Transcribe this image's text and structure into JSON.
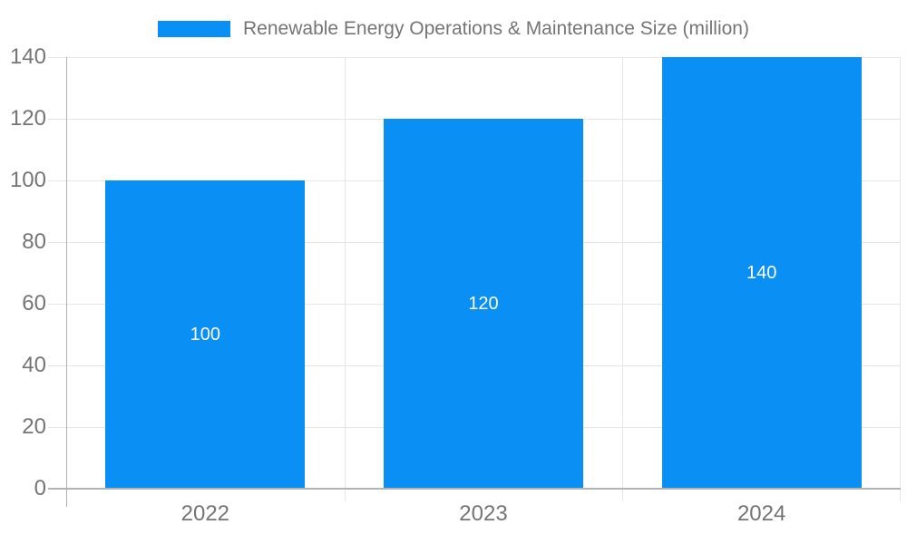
{
  "legend": {
    "label": "Renewable Energy Operations & Maintenance Size (million)",
    "swatch_color": "#0a90f5"
  },
  "chart_data": {
    "type": "bar",
    "title": "Renewable Energy Operations & Maintenance Size (million)",
    "categories": [
      "2022",
      "2023",
      "2024"
    ],
    "values": [
      100,
      120,
      140
    ],
    "data_labels": [
      "100",
      "120",
      "140"
    ],
    "xlabel": "",
    "ylabel": "",
    "ylim": [
      0,
      140
    ],
    "yticks": [
      0,
      20,
      40,
      60,
      80,
      100,
      120,
      140
    ],
    "grid": true,
    "legend_position": "top-center",
    "colors": {
      "bar": "#0a90f5",
      "axis_text": "#757575",
      "title_text": "#757575",
      "data_label_text": "#ffffff",
      "gridline": "#e6e6e6",
      "axis_line": "#b0b0b0",
      "baseline": "#b3b3b3",
      "background": "#ffffff"
    }
  }
}
